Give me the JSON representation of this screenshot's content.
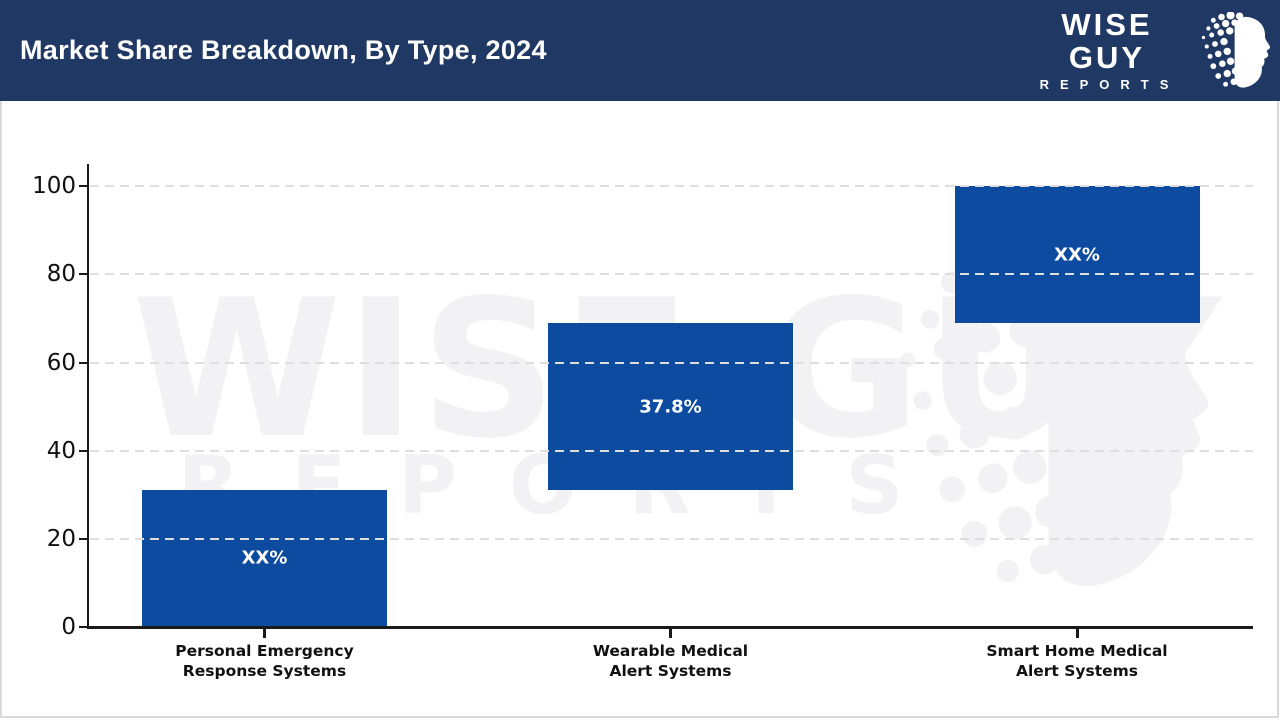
{
  "header": {
    "title": "Market Share Breakdown, By Type, 2024",
    "logo": {
      "wordmark": "WISE GUY",
      "subtext": "REPORTS",
      "icon": "dotted-face-profile-icon"
    }
  },
  "watermark": {
    "line1": "WISE GUY",
    "line2": "REPORTS",
    "icon": "dotted-face-profile-icon"
  },
  "colors": {
    "header_bg": "#1f3864",
    "bar_fill": "#0d4ba0",
    "bar_label": "#ffffff",
    "grid_line": "#dedede",
    "axis_line": "#1a1a1a",
    "tick_label": "#111111",
    "watermark_fill": "#f2f2f4",
    "frame_line": "#d9d9d9",
    "title_text": "#ffffff"
  },
  "chart_data": {
    "type": "bar",
    "variant": "stacked-breakdown (waterfall: each bar begins where the previous bar ends)",
    "title": "Market Share Breakdown, By Type, 2024",
    "categories": [
      [
        "Personal Emergency",
        "Response Systems"
      ],
      [
        "Wearable Medical",
        "Alert Systems"
      ],
      [
        "Smart Home Medical",
        "Alert Systems"
      ]
    ],
    "segments": [
      {
        "start": 0,
        "end": 31.1,
        "value": 31.1,
        "value_label": "XX%"
      },
      {
        "start": 31.1,
        "end": 68.9,
        "value": 37.8,
        "value_label": "37.8%"
      },
      {
        "start": 68.9,
        "end": 100,
        "value": 31.1,
        "value_label": "XX%"
      }
    ],
    "ylim": [
      0,
      100
    ],
    "yticks": [
      "0",
      "20",
      "40",
      "60",
      "80",
      "100"
    ],
    "xlabel": "",
    "ylabel": "",
    "grid": "horizontal dashed, drawn over bars",
    "legend": "none"
  }
}
